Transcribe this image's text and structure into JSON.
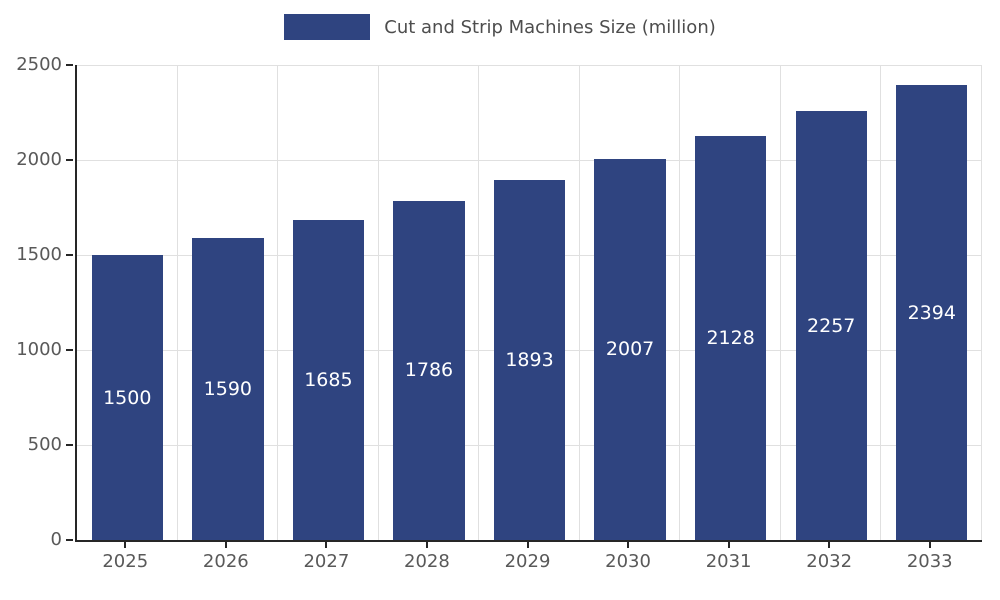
{
  "chart_data": {
    "type": "bar",
    "title": "Cut and Strip Machines Size (million)",
    "categories": [
      "2025",
      "2026",
      "2027",
      "2028",
      "2029",
      "2030",
      "2031",
      "2032",
      "2033"
    ],
    "values": [
      1500,
      1590,
      1685,
      1786,
      1893,
      2007,
      2128,
      2257,
      2394
    ],
    "xlabel": "",
    "ylabel": "",
    "ylim": [
      0,
      2500
    ],
    "yticks": [
      0,
      500,
      1000,
      1500,
      2000,
      2500
    ],
    "grid": true,
    "legend_position": "top-center",
    "bar_color": "#2F4480",
    "value_label_color": "#ffffff",
    "tick_label_color": "#595959",
    "axis_color": "#262626",
    "grid_color": "#e0e0e0"
  }
}
